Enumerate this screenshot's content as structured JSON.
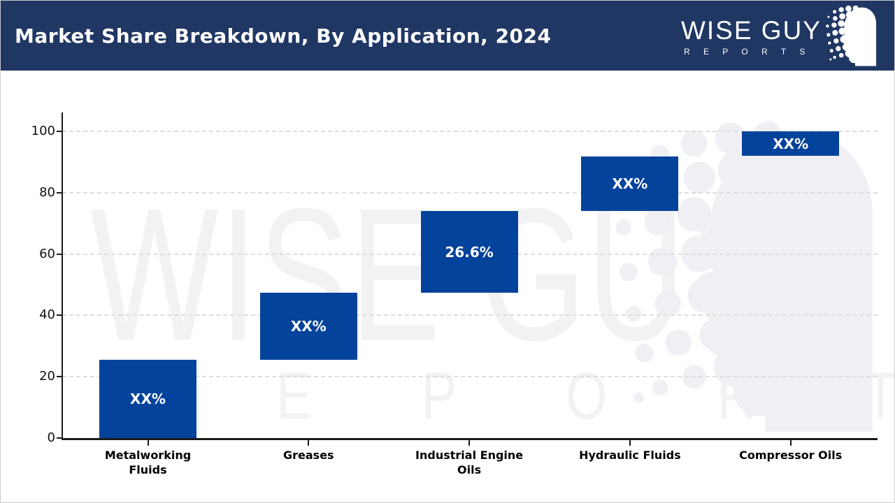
{
  "header": {
    "title": "Market Share Breakdown, By Application, 2024",
    "logo": {
      "line1": "WISE GUY",
      "line2": "R E P O R T S"
    }
  },
  "watermark": {
    "line1": "WISE GUY",
    "line2": "R E P O R T S"
  },
  "chart_data": {
    "type": "bar",
    "subtype": "waterfall",
    "title": "Market Share Breakdown, By Application, 2024",
    "xlabel": "",
    "ylabel": "",
    "yticks": [
      0,
      20,
      40,
      60,
      80,
      100
    ],
    "ylim": [
      0,
      106
    ],
    "grid": "horizontal-dashed",
    "legend": "none",
    "categories": [
      "Metalworking Fluids",
      "Greases",
      "Industrial Engine Oils",
      "Hydraulic Fluids",
      "Compressor Oils"
    ],
    "category_lines": [
      [
        "Metalworking",
        "Fluids"
      ],
      [
        "Greases"
      ],
      [
        "Industrial Engine",
        "Oils"
      ],
      [
        "Hydraulic Fluids"
      ],
      [
        "Compressor Oils"
      ]
    ],
    "series": [
      {
        "name": "Market Share",
        "segments": [
          {
            "category": "Metalworking Fluids",
            "start": 0,
            "end": 25.5,
            "label": "XX%"
          },
          {
            "category": "Greases",
            "start": 25.5,
            "end": 47.4,
            "label": "XX%"
          },
          {
            "category": "Industrial Engine Oils",
            "start": 47.4,
            "end": 74.0,
            "label": "26.6%"
          },
          {
            "category": "Hydraulic Fluids",
            "start": 74.0,
            "end": 91.8,
            "label": "XX%"
          },
          {
            "category": "Compressor Oils",
            "start": 92.0,
            "end": 100.0,
            "label": "XX%"
          }
        ]
      }
    ]
  },
  "colors": {
    "header_bg": "#203764",
    "bar": "#04439B",
    "bar_label": "#ffffff",
    "axis": "#1a1a1a",
    "gridline": "#dddddd",
    "watermark": "#f2f2f5",
    "page_border": "#c9cbd1"
  }
}
